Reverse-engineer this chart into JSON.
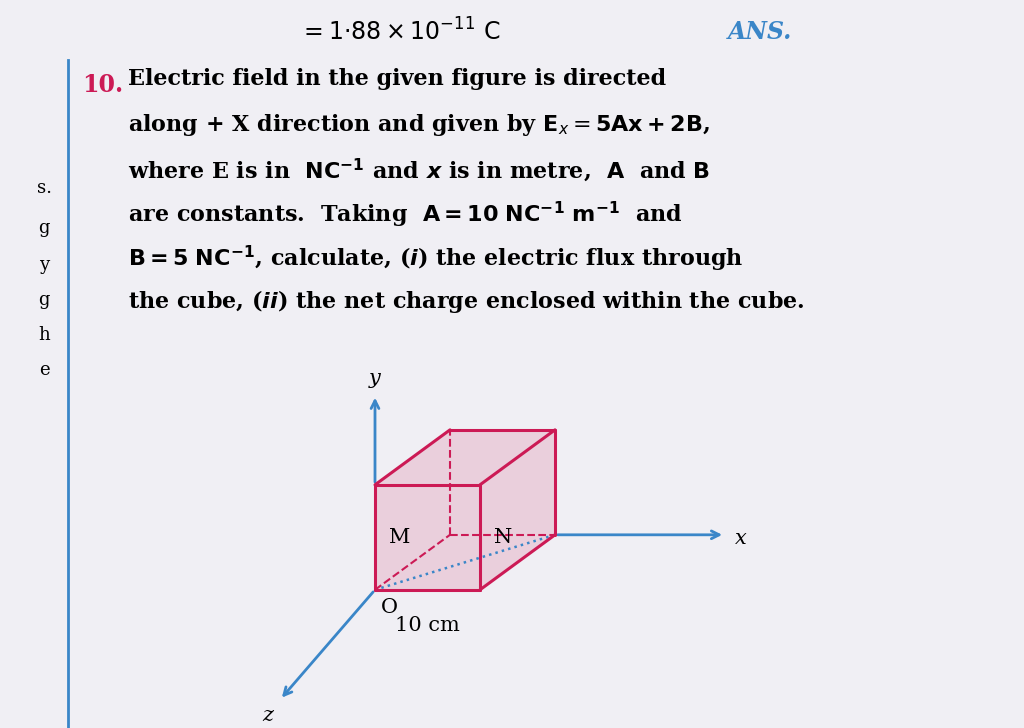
{
  "background_color": "#f0eff4",
  "title_line": "= 1·88 × 10⁻¹¹ C",
  "ans_text": "ANS.",
  "question_number": "10.",
  "axis_color": "#3a86c8",
  "cube_color": "#cc1a55",
  "label_M": "M",
  "label_N": "N",
  "label_O": "O",
  "label_x": "x",
  "label_y": "y",
  "label_z": "z",
  "label_10cm": "10 cm",
  "left_letters": [
    "s.",
    "g",
    "y",
    "g",
    "h",
    "e"
  ],
  "ans_color": "#3a86c8",
  "left_line_color": "#3a86c8"
}
